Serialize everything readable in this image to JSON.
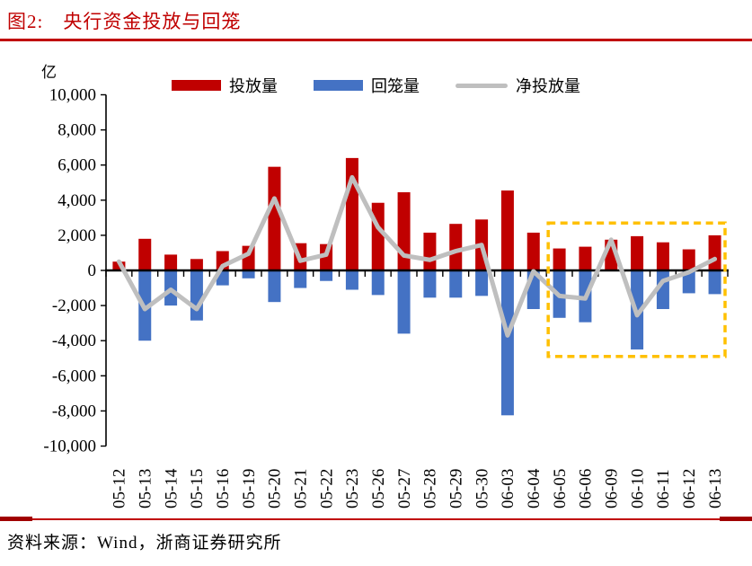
{
  "figure": {
    "title_prefix": "图2:",
    "title": "央行资金投放与回笼",
    "source_note": "资料来源：Wind，浙商证券研究所",
    "accent_color": "#c00000"
  },
  "chart_data": {
    "type": "bar",
    "title": "央行资金投放与回笼",
    "unit_label": "亿",
    "xlabel": "",
    "ylabel": "亿",
    "grid": false,
    "legend_position": "top",
    "categories": [
      "05-12",
      "05-13",
      "05-14",
      "05-15",
      "05-16",
      "05-19",
      "05-20",
      "05-21",
      "05-22",
      "05-23",
      "05-26",
      "05-27",
      "05-28",
      "05-29",
      "05-30",
      "06-03",
      "06-04",
      "06-05",
      "06-06",
      "06-09",
      "06-10",
      "06-11",
      "06-12",
      "06-13"
    ],
    "series": [
      {
        "name": "投放量",
        "type": "bar",
        "color": "#c00000",
        "values": [
          500,
          1800,
          900,
          650,
          1100,
          1400,
          5900,
          1550,
          1500,
          6400,
          3850,
          4450,
          2150,
          2650,
          2900,
          4550,
          2150,
          1250,
          1350,
          1750,
          1950,
          1600,
          1200,
          2000
        ]
      },
      {
        "name": "回笼量",
        "type": "bar",
        "color": "#4472c4",
        "values": [
          0,
          -4000,
          -2000,
          -2850,
          -850,
          -450,
          -1800,
          -1000,
          -600,
          -1100,
          -1400,
          -3600,
          -1550,
          -1550,
          -1450,
          -8250,
          -2200,
          -2700,
          -2950,
          0,
          -4500,
          -2200,
          -1300,
          -1350
        ]
      },
      {
        "name": "净投放量",
        "type": "line",
        "color": "#bfbfbf",
        "values": [
          500,
          -2200,
          -1100,
          -2200,
          250,
          950,
          4100,
          550,
          900,
          5300,
          2450,
          850,
          600,
          1100,
          1450,
          -3700,
          -50,
          -1450,
          -1600,
          1750,
          -2550,
          -600,
          -100,
          650
        ]
      }
    ],
    "ylim": [
      -10000,
      10000
    ],
    "ytick_step": 2000,
    "ytick_labels": [
      "10,000",
      "8,000",
      "6,000",
      "4,000",
      "2,000",
      "0",
      "-2,000",
      "-4,000",
      "-6,000",
      "-8,000",
      "-10,000"
    ],
    "highlight_box": {
      "from_category": "06-05",
      "to_category": "06-13",
      "value_top": 2700,
      "value_bottom": -4900,
      "color": "#ffc000",
      "style": "dashed"
    }
  }
}
